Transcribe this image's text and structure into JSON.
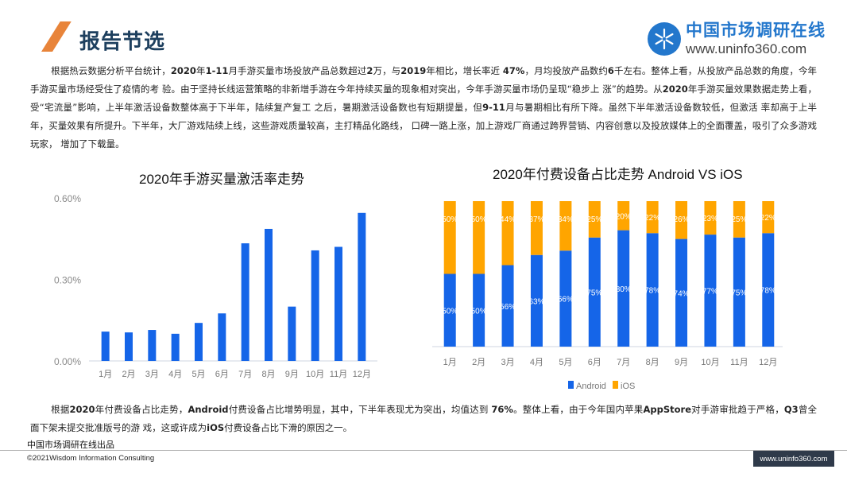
{
  "header": {
    "title": "报告节选",
    "logo": {
      "icon": "snowflake-logo-icon",
      "name_cn": "中国市场调研在线",
      "url": "www.uninfo360.com"
    }
  },
  "paragraph1": [
    {
      "t": "根据热云数据分析平台统计，"
    },
    {
      "t": "2020",
      "b": true
    },
    {
      "t": "年"
    },
    {
      "t": "1-11",
      "b": true
    },
    {
      "t": "月手游买量市场投放产品总数超过"
    },
    {
      "t": "2",
      "b": true
    },
    {
      "t": "万，与"
    },
    {
      "t": "2019",
      "b": true
    },
    {
      "t": "年相比，增长率近 "
    },
    {
      "t": "47%",
      "b": true
    },
    {
      "t": "，月均投放产品数约"
    },
    {
      "t": "6",
      "b": true
    },
    {
      "t": "千左右。整体上看，从投放产品总数的角度，今年手游买量市场经受住了疫情的考 验。由于坚持长线运营策略的非新增手游在今年持续买量的现象相对突出，今年手游买量市场仍呈现“稳步上 涨”的趋势。从"
    },
    {
      "t": "2020",
      "b": true
    },
    {
      "t": "年手游买量效果数据走势上看，受“宅流量”影响，上半年激活设备数整体高于下半年，陆续复产复工 之后，暑期激活设备数也有短期提量，但"
    },
    {
      "t": "9-11",
      "b": true
    },
    {
      "t": "月与暑期相比有所下降。虽然下半年激活设备数较低，但激活 率却高于上半年，买量效果有所提升。下半年，大厂游戏陆续上线，这些游戏质量较高，主打精品化路线， 口碑一路上涨，加上游戏厂商通过跨界营销、内容创意以及投放媒体上的全面覆盖，吸引了众多游戏玩家， 增加了下载量。"
    }
  ],
  "paragraph2": [
    {
      "t": "根据"
    },
    {
      "t": "2020",
      "b": true
    },
    {
      "t": "年付费设备占比走势，"
    },
    {
      "t": "Android",
      "b": true
    },
    {
      "t": "付费设备占比增势明显，其中，下半年表现尤为突出，均值达到 "
    },
    {
      "t": "76%",
      "b": true
    },
    {
      "t": "。整体上看，由于今年国内苹果"
    },
    {
      "t": "AppStore",
      "b": true
    },
    {
      "t": "对手游审批趋于严格，"
    },
    {
      "t": "Q3",
      "b": true
    },
    {
      "t": "曾全 面下架未提交批准版号的游 戏，这或许成为"
    },
    {
      "t": "iOS",
      "b": true
    },
    {
      "t": "付费设备占比下滑的原因之一。"
    }
  ],
  "colors": {
    "android": "#1565e8",
    "ios": "#ffa500",
    "accent": "#e8843a",
    "title": "#1d3f5e",
    "brand": "#2377cc"
  },
  "chart_data": [
    {
      "type": "bar",
      "title": "2020年手游买量激活率走势",
      "categories": [
        "1月",
        "2月",
        "3月",
        "4月",
        "5月",
        "6月",
        "7月",
        "8月",
        "9月",
        "10月",
        "11月",
        "12月"
      ],
      "values": [
        0.108,
        0.105,
        0.114,
        0.1,
        0.14,
        0.175,
        0.433,
        0.486,
        0.2,
        0.407,
        0.42,
        0.545
      ],
      "unit": "%",
      "ylim": [
        0,
        0.6
      ],
      "yticks": [
        "0.00%",
        "0.30%",
        "0.60%"
      ],
      "xlabel": "",
      "ylabel": "",
      "grid": false,
      "legend": "none"
    },
    {
      "type": "bar",
      "stacked": true,
      "title": "2020年付费设备占比走势  Android VS iOS",
      "categories": [
        "1月",
        "2月",
        "3月",
        "4月",
        "5月",
        "6月",
        "7月",
        "8月",
        "9月",
        "10月",
        "11月",
        "12月"
      ],
      "series": [
        {
          "name": "Android",
          "values": [
            50,
            50,
            56,
            63,
            66,
            75,
            80,
            78,
            74,
            77,
            75,
            78
          ]
        },
        {
          "name": "iOS",
          "values": [
            50,
            50,
            44,
            37,
            34,
            25,
            20,
            22,
            26,
            23,
            25,
            22
          ]
        }
      ],
      "unit": "%",
      "ylim": [
        0,
        100
      ],
      "grid": false,
      "legend": "bottom"
    }
  ],
  "footer": {
    "publisher": "中国市场调研在线出品",
    "copyright": "©2021Wisdom Information Consulting",
    "url_badge": "www.uninfo360.com"
  }
}
